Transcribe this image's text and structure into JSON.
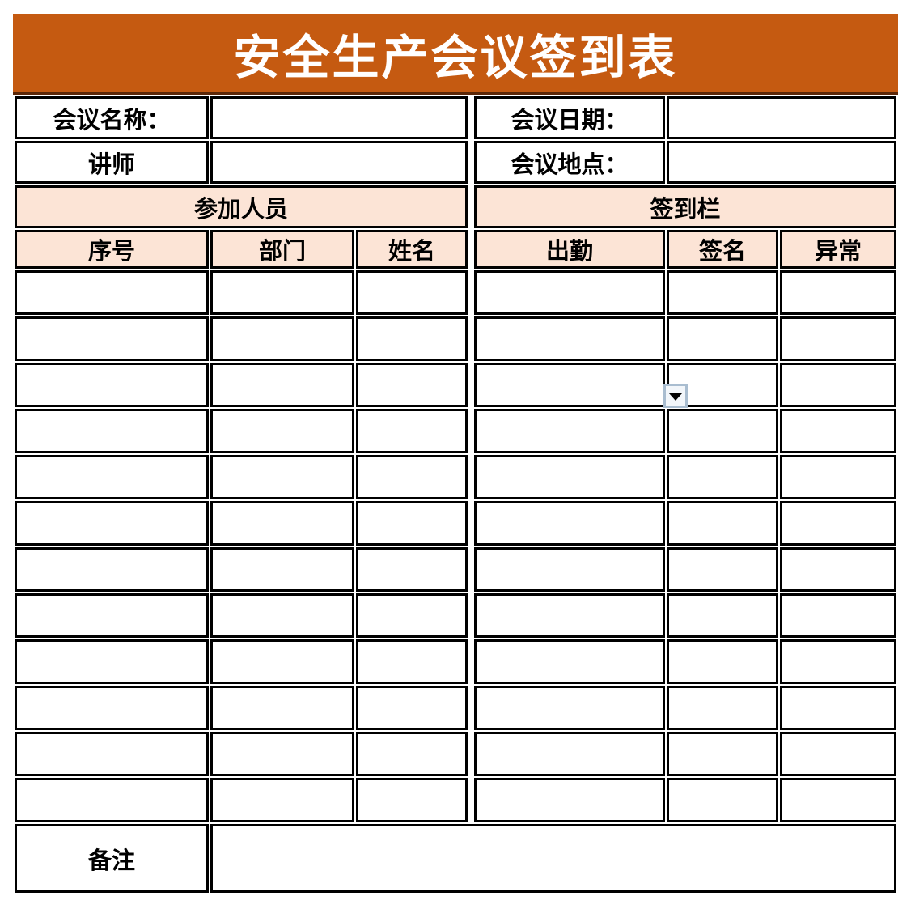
{
  "title": "安全生产会议签到表",
  "colors": {
    "banner_bg": "#C55A11",
    "banner_text": "#FFFFFF",
    "section_header_bg": "#FCE4D6",
    "grid_border": "#000000",
    "dropdown_border": "#A9BDD0",
    "dropdown_bg": "#F2F6FA"
  },
  "info": {
    "meeting_name_label": "会议名称：",
    "meeting_name_value": "",
    "meeting_date_label": "会议日期：",
    "meeting_date_value": "",
    "lecturer_label": "讲师",
    "lecturer_value": "",
    "location_label": "会议地点：",
    "location_value": ""
  },
  "sections": {
    "participants": "参加人员",
    "signin": "签到栏"
  },
  "table": {
    "columns": [
      "序号",
      "部门",
      "姓名",
      "出勤",
      "签名",
      "异常"
    ],
    "row_count": 12,
    "cells_empty": true
  },
  "remarks_label": "备注",
  "remarks_value": "",
  "dropdown": {
    "icon": "dropdown-arrow-icon",
    "attached_row": 3,
    "attached_column": "出勤"
  }
}
